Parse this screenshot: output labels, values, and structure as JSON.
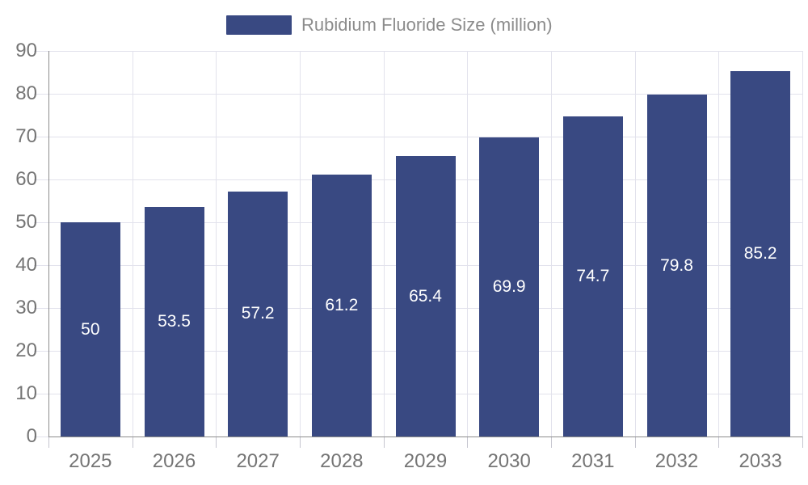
{
  "legend": {
    "label": "Rubidium Fluoride Size (million)"
  },
  "colors": {
    "bar": "#394982",
    "grid": "#E2E2EC",
    "axis": "#8C8C8C",
    "tick": "#C6C6D0",
    "tick_label": "#757575",
    "legend_text": "#8C8C8C",
    "bar_label": "#FFFFFF",
    "background": "#FFFFFF"
  },
  "chart_data": {
    "type": "bar",
    "title": "",
    "categories": [
      "2025",
      "2026",
      "2027",
      "2028",
      "2029",
      "2030",
      "2031",
      "2032",
      "2033"
    ],
    "series": [
      {
        "name": "Rubidium Fluoride Size (million)",
        "values": [
          50,
          53.5,
          57.2,
          61.2,
          65.4,
          69.9,
          74.7,
          79.8,
          85.2
        ]
      }
    ],
    "bar_labels": [
      "50",
      "53.5",
      "57.2",
      "61.2",
      "65.4",
      "69.9",
      "74.7",
      "79.8",
      "85.2"
    ],
    "xlabel": "",
    "ylabel": "",
    "ylim": [
      0,
      90
    ],
    "yticks": [
      0,
      10,
      20,
      30,
      40,
      50,
      60,
      70,
      80,
      90
    ],
    "grid": true,
    "legend_position": "top",
    "value_label_position": "inside-center"
  }
}
